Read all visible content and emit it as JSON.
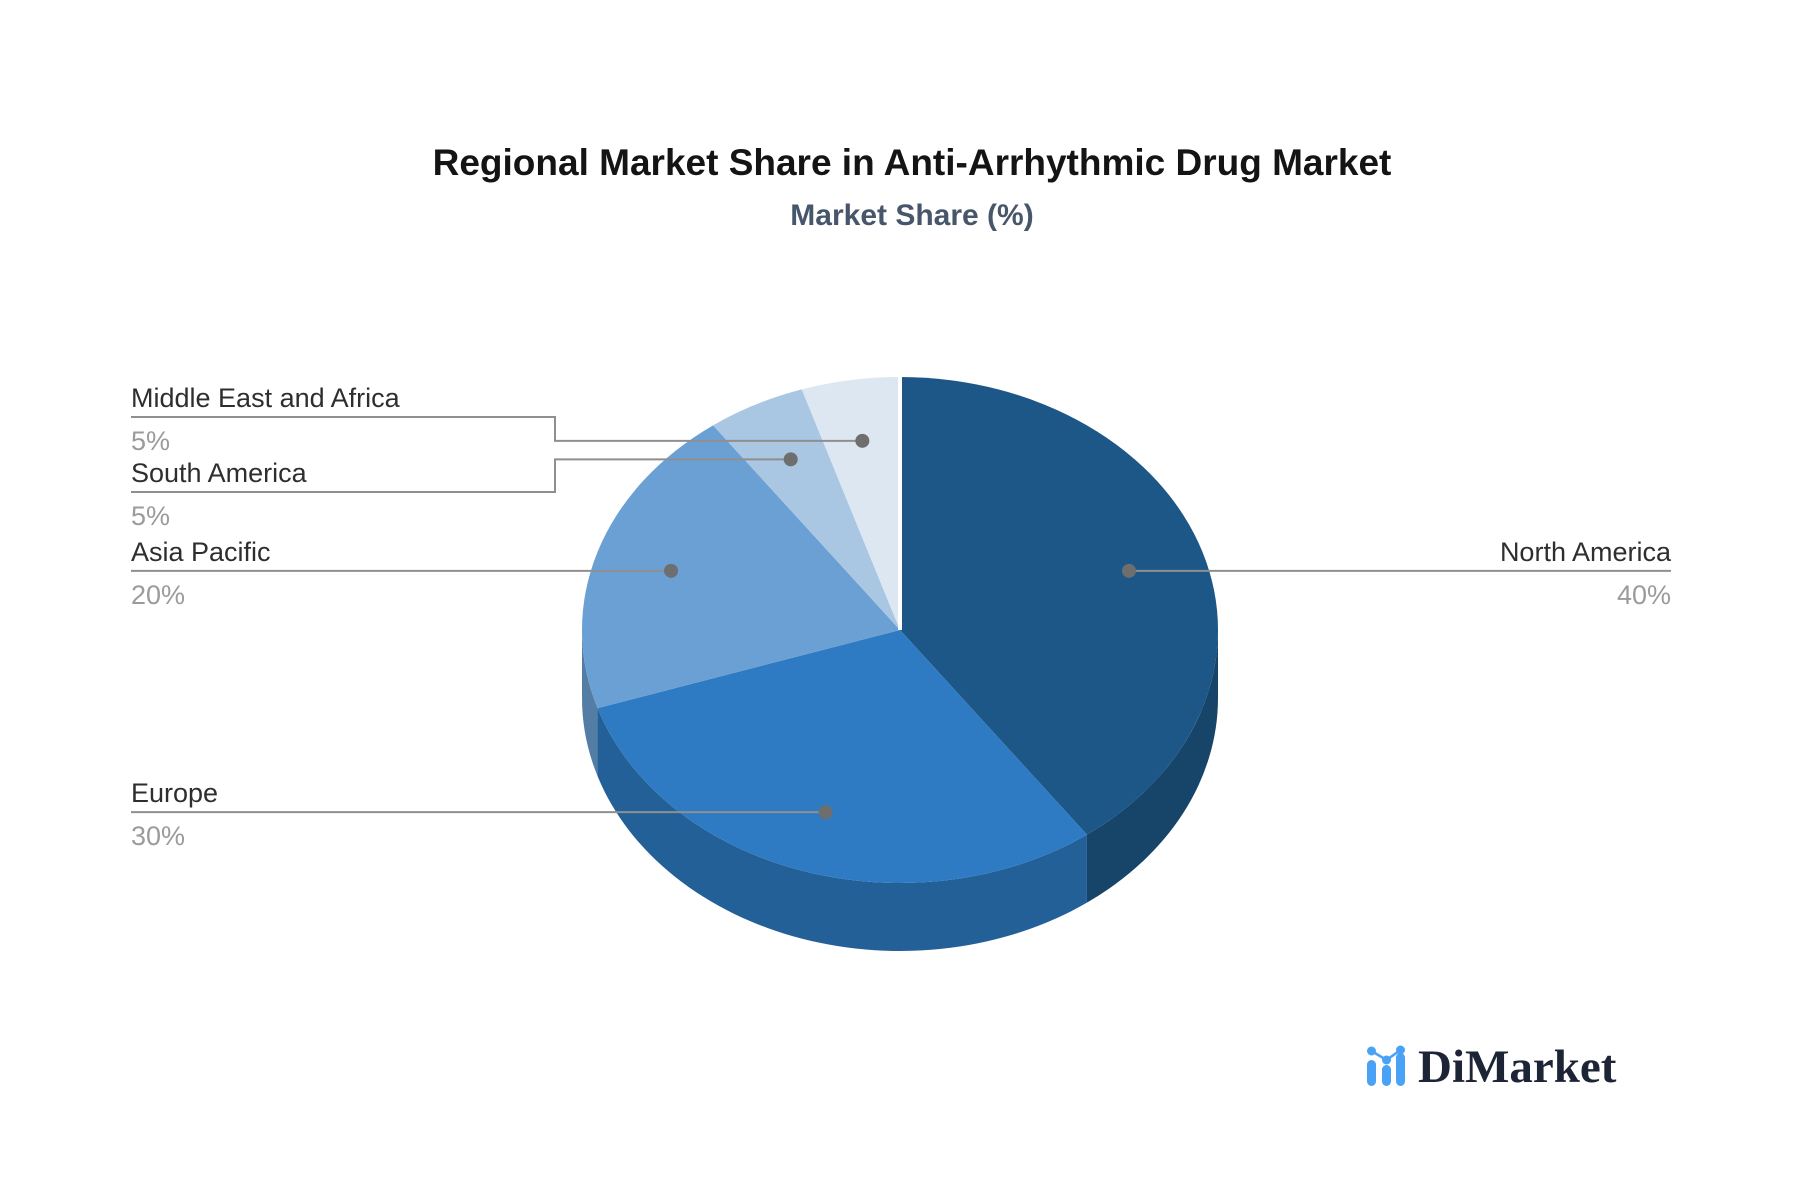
{
  "title": "Regional Market Share in Anti-Arrhythmic Drug Market",
  "subtitle": "Market Share (%)",
  "watermark": {
    "brand": "DiMarket",
    "icon": "bar-line-chart-icon",
    "icon_color": "#4aa2f6",
    "text_color": "#1d2435"
  },
  "text_colors": {
    "title": "#141414",
    "subtitle": "#47566a"
  },
  "chart_data": {
    "type": "pie",
    "style": "3d",
    "title": "Regional Market Share in Anti-Arrhythmic Drug Market",
    "subtitle": "Market Share (%)",
    "unit": "%",
    "start_angle": "12 o'clock",
    "direction": "clockwise",
    "legend": false,
    "label_style": "callout lines with category above and percent value below",
    "slices": [
      {
        "label": "North America",
        "value": 40,
        "color": "#1d5787"
      },
      {
        "label": "Europe",
        "value": 30,
        "color": "#2e7bc3"
      },
      {
        "label": "Asia Pacific",
        "value": 20,
        "color": "#6ba0d4"
      },
      {
        "label": "South America",
        "value": 5,
        "color": "#a9c6e3"
      },
      {
        "label": "Middle East and Africa",
        "value": 5,
        "color": "#dde7f1"
      }
    ],
    "callout_colors": {
      "line": "#8f8f8f",
      "dot": "#6e6e6e",
      "label_text": "#2e2e2e",
      "value_text": "#9b9b9b"
    }
  }
}
